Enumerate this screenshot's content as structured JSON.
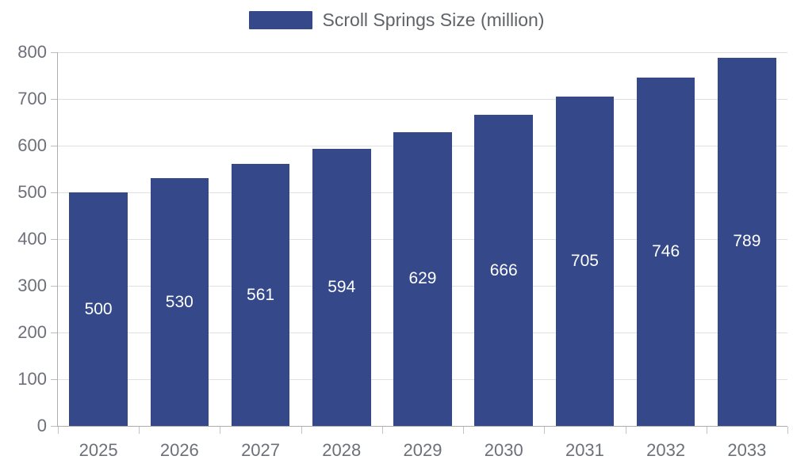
{
  "chart_data": {
    "type": "bar",
    "title": "",
    "categories": [
      "2025",
      "2026",
      "2027",
      "2028",
      "2029",
      "2030",
      "2031",
      "2032",
      "2033"
    ],
    "series": [
      {
        "name": "Scroll Springs Size (million)",
        "values": [
          500,
          530,
          561,
          594,
          629,
          666,
          705,
          746,
          789
        ]
      }
    ],
    "value_labels": [
      "500",
      "530",
      "561",
      "594",
      "629",
      "666",
      "705",
      "746",
      "789"
    ],
    "xlabel": "",
    "ylabel": "",
    "ylim": [
      0,
      800
    ],
    "ytick_interval": 100,
    "yticks": [
      0,
      100,
      200,
      300,
      400,
      500,
      600,
      700,
      800
    ],
    "grid": true,
    "legend_position": "top-center",
    "legend_entries": [
      "Scroll Springs Size (million)"
    ]
  },
  "legend": {
    "label": "Scroll Springs Size (million)"
  },
  "colors": {
    "bar": "#35498a",
    "value_label": "#ffffff",
    "grid": "#e0e0e0",
    "axis_line": "#adadad",
    "axis_text": "#6e7079",
    "legend_text": "#5f6368",
    "background": "#ffffff"
  }
}
